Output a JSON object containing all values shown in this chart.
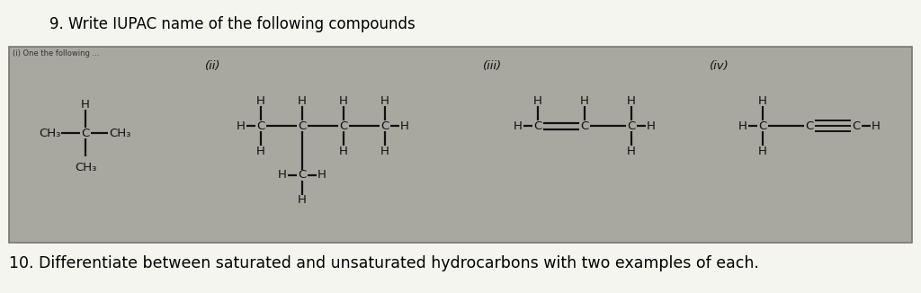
{
  "title_q9": "9. Write IUPAC name of the following compounds",
  "title_q10": "10. Differentiate between saturated and unsaturated hydrocarbons with two examples of each.",
  "page_color": "#f5f5f0",
  "box_bg": "#a8a8a0",
  "box_border": "#777770",
  "text_dark": "#111111",
  "fig_width": 10.24,
  "fig_height": 3.26,
  "dpi": 100,
  "watermark_text": "(i) One the following ...",
  "label_ii": "(ii)",
  "label_iii": "(iii)",
  "label_iv": "(iv)"
}
